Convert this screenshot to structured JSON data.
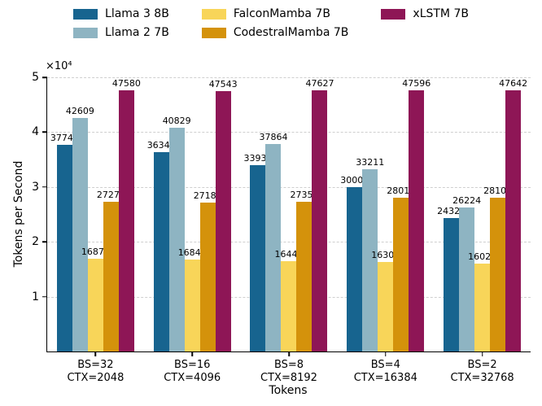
{
  "chart_data": {
    "type": "bar",
    "title": "",
    "xlabel": "Tokens",
    "ylabel": "Tokens per Second",
    "y_offset_label": "×10⁴",
    "ylim": [
      0,
      50000
    ],
    "yticks": [
      {
        "value": 10000,
        "label": "1"
      },
      {
        "value": 20000,
        "label": "2"
      },
      {
        "value": 30000,
        "label": "3"
      },
      {
        "value": 40000,
        "label": "4"
      },
      {
        "value": 50000,
        "label": "5"
      }
    ],
    "categories": [
      "BS=32\nCTX=2048",
      "BS=16\nCTX=4096",
      "BS=8\nCTX=8192",
      "BS=4\nCTX=16384",
      "BS=2\nCTX=32768"
    ],
    "series": [
      {
        "name": "Llama 3 8B",
        "color": "#17648f",
        "values": [
          37741,
          36343,
          33938,
          30000,
          24320
        ]
      },
      {
        "name": "Llama 2 7B",
        "color": "#8eb4c2",
        "values": [
          42609,
          40829,
          37864,
          33211,
          26224
        ]
      },
      {
        "name": "FalconMamba 7B",
        "color": "#f8d559",
        "values": [
          16878,
          16840,
          16449,
          16309,
          16027
        ]
      },
      {
        "name": "CodestralMamba 7B",
        "color": "#d4920b",
        "values": [
          27272,
          27184,
          27354,
          28014,
          28108
        ]
      },
      {
        "name": "xLSTM 7B",
        "color": "#8e1656",
        "values": [
          47580,
          47543,
          47627,
          47596,
          47642
        ]
      }
    ],
    "legend_position": "top",
    "grid": "dashed-horizontal"
  }
}
